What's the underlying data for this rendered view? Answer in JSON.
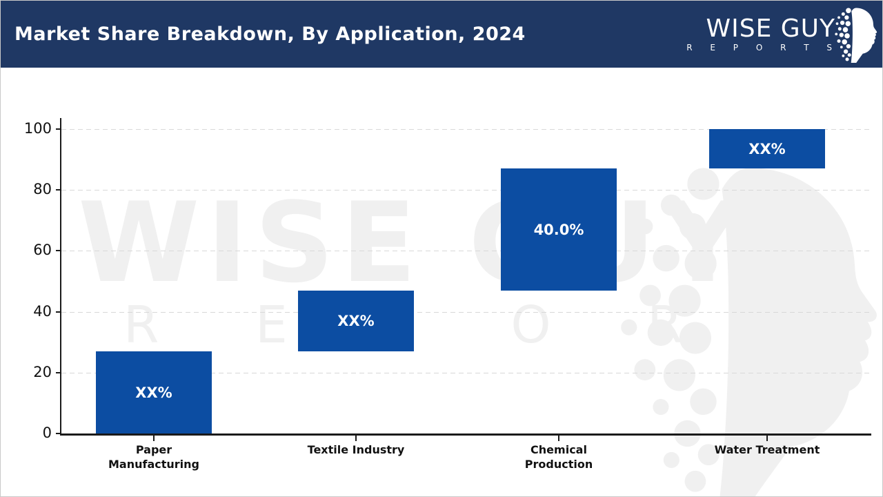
{
  "header": {
    "title": "Market Share Breakdown, By Application, 2024",
    "bg_color": "#1f3864",
    "text_color": "#ffffff",
    "logo": {
      "line1": "WISE GUY",
      "line2": "R E P O R T S"
    }
  },
  "watermark": {
    "line1": "WISE GUY",
    "line2": "R E P O R T S",
    "color": "#f0f0f0"
  },
  "chart_data": {
    "type": "bar",
    "subtype": "waterfall",
    "title": "Market Share Breakdown, By Application, 2024",
    "categories": [
      "Paper Manufacturing",
      "Textile Industry",
      "Chemical Production",
      "Water Treatment"
    ],
    "category_lines": [
      [
        "Paper",
        "Manufacturing"
      ],
      [
        "Textile Industry"
      ],
      [
        "Chemical",
        "Production"
      ],
      [
        "Water Treatment"
      ]
    ],
    "series": [
      {
        "name": "Market Share (%)",
        "bases": [
          0,
          27,
          47,
          87
        ],
        "values": [
          27,
          20,
          40,
          13
        ]
      }
    ],
    "bar_labels": [
      "XX%",
      "XX%",
      "40.0%",
      "XX%"
    ],
    "yticks": [
      0,
      20,
      40,
      60,
      80,
      100
    ],
    "ylim": [
      0,
      104
    ],
    "xlabel": "",
    "ylabel": "",
    "grid": "horizontal-dashed",
    "legend": "none",
    "bar_color": "#0c4da2",
    "bar_label_color": "#ffffff",
    "grid_color": "#d8d8d8",
    "axis_color": "#1a1a1a"
  }
}
